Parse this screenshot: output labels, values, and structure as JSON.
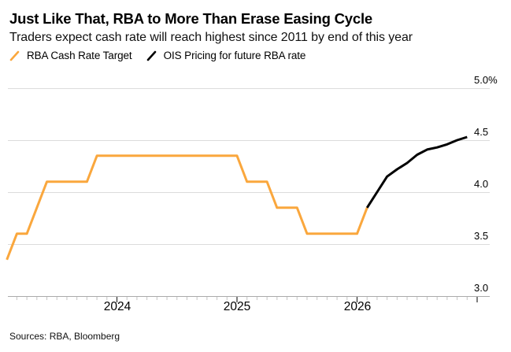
{
  "header": {
    "title": "Just Like That, RBA to More Than Erase Easing Cycle",
    "subtitle": "Traders expect cash rate will reach highest since 2011 by end of this year"
  },
  "legend": {
    "items": [
      {
        "label": "RBA Cash Rate Target",
        "color": "#FAA73D",
        "icon": "orange-slash-icon"
      },
      {
        "label": "OIS Pricing for future RBA rate",
        "color": "#000000",
        "icon": "black-slash-icon"
      }
    ]
  },
  "chart_data": {
    "type": "line",
    "title": "Just Like That, RBA to More Than Erase Easing Cycle",
    "xlabel": "",
    "ylabel": "",
    "unit": "%",
    "ylim": [
      3.0,
      5.0
    ],
    "yticks": [
      5.0,
      4.5,
      4.0,
      3.5,
      3.0
    ],
    "ytick_labels": [
      "5.0%",
      "4.5",
      "4.0",
      "3.5",
      "3.0"
    ],
    "xticks": [
      2024,
      2025,
      2026
    ],
    "xtick_labels": [
      "2024",
      "2025",
      "2026"
    ],
    "grid": "horizontal",
    "legend_position": "top-left",
    "colors": {
      "grid": "#DCDCDC",
      "axis": "#ABABAB",
      "minor_tick": "#C4C4C4",
      "major_tick": "#3A3A3A"
    },
    "series": [
      {
        "name": "RBA Cash Rate Target",
        "color": "#FAA73D",
        "frequency": "monthly",
        "start_year": 2023,
        "start_month": 2,
        "values": [
          3.35,
          3.6,
          3.6,
          3.85,
          4.1,
          4.1,
          4.1,
          4.1,
          4.1,
          4.35,
          4.35,
          4.35,
          4.35,
          4.35,
          4.35,
          4.35,
          4.35,
          4.35,
          4.35,
          4.35,
          4.35,
          4.35,
          4.35,
          4.35,
          4.1,
          4.1,
          4.1,
          3.85,
          3.85,
          3.85,
          3.6,
          3.6,
          3.6,
          3.6,
          3.6,
          3.6,
          3.85
        ]
      },
      {
        "name": "OIS Pricing for future RBA rate",
        "color": "#000000",
        "frequency": "monthly",
        "start_year": 2026,
        "start_month": 2,
        "values": [
          3.85,
          4.0,
          4.15,
          4.22,
          4.28,
          4.36,
          4.41,
          4.43,
          4.46,
          4.5,
          4.53
        ]
      }
    ]
  },
  "footer": {
    "sources": "Sources: RBA, Bloomberg"
  }
}
